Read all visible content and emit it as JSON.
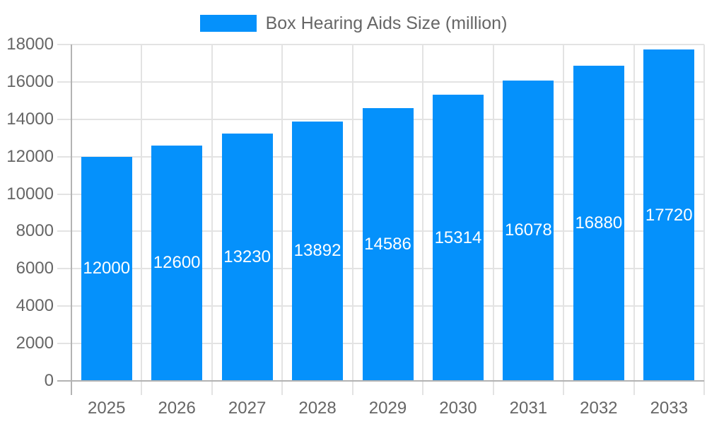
{
  "chart_data": {
    "type": "bar",
    "title": "",
    "xlabel": "",
    "ylabel": "",
    "legend": {
      "label": "Box Hearing Aids Size (million)",
      "position": "top"
    },
    "categories": [
      "2025",
      "2026",
      "2027",
      "2028",
      "2029",
      "2030",
      "2031",
      "2032",
      "2033"
    ],
    "series": [
      {
        "name": "Box Hearing Aids Size (million)",
        "values": [
          12000,
          12600,
          13230,
          13892,
          14586,
          15314,
          16078,
          16880,
          17720
        ]
      }
    ],
    "data_labels": [
      "12000",
      "12600",
      "13230",
      "13892",
      "14586",
      "15314",
      "16078",
      "16880",
      "17720"
    ],
    "ylim": [
      0,
      18000
    ],
    "yticks": [
      0,
      2000,
      4000,
      6000,
      8000,
      10000,
      12000,
      14000,
      16000,
      18000
    ],
    "grid": true,
    "colors": {
      "bar": "#0591FB",
      "grid": "#E3E3E3",
      "axis": "#B3B3B3",
      "text": "#666666",
      "data_label": "#FFFFFF",
      "background": "#FFFFFF"
    }
  }
}
